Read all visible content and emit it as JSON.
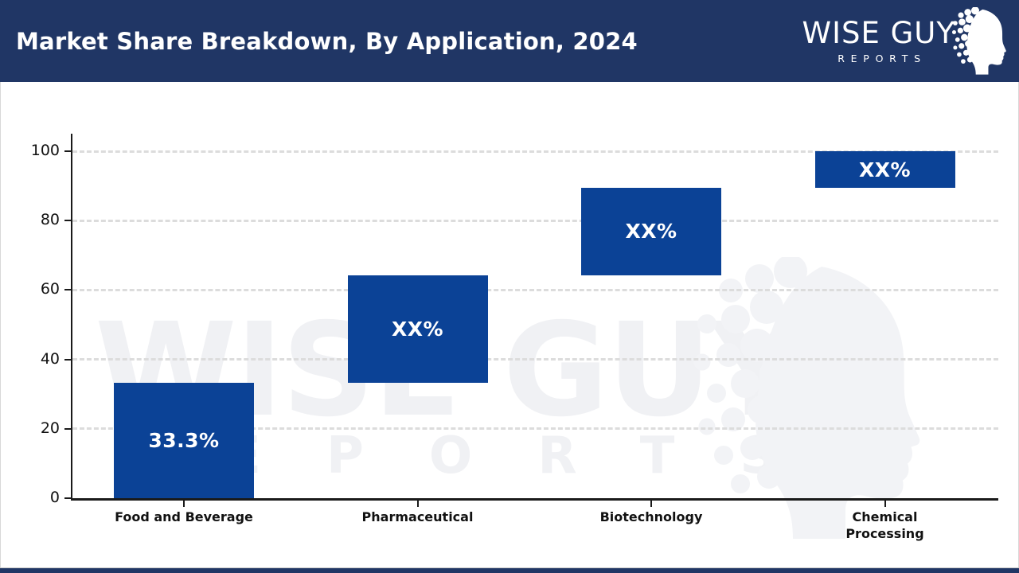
{
  "header": {
    "title": "Market Share Breakdown, By Application, 2024"
  },
  "logo": {
    "line1": "WISE GUY",
    "line2": "REPORTS"
  },
  "watermark": {
    "line1": "WISE GUY",
    "line2": "REPORTS"
  },
  "chart_data": {
    "type": "bar",
    "subtype": "floating-waterfall",
    "title": "Market Share Breakdown, By Application, 2024",
    "categories": [
      "Food and Beverage",
      "Pharmaceutical",
      "Biotechnology",
      "Chemical Processing"
    ],
    "category_lines": [
      [
        "Food and Beverage"
      ],
      [
        "Pharmaceutical"
      ],
      [
        "Biotechnology"
      ],
      [
        "Chemical",
        "Processing"
      ]
    ],
    "series": [
      {
        "name": "Market Share",
        "segments": [
          {
            "category": "Food and Beverage",
            "start": 0,
            "end": 33.3,
            "value": 33.3,
            "label": "33.3%"
          },
          {
            "category": "Pharmaceutical",
            "start": 33.3,
            "end": 64.3,
            "value": 31.0,
            "label": "XX%"
          },
          {
            "category": "Biotechnology",
            "start": 64.3,
            "end": 89.4,
            "value": 25.1,
            "label": "XX%"
          },
          {
            "category": "Chemical Processing",
            "start": 89.4,
            "end": 100,
            "value": 10.6,
            "label": "XX%"
          }
        ]
      }
    ],
    "xlabel": "",
    "ylabel": "",
    "ylim": [
      0,
      100
    ],
    "yticks": [
      0,
      20,
      40,
      60,
      80,
      100
    ],
    "grid": "horizontal-dashed",
    "legend": "none",
    "bar_color": "#0b4296",
    "label_color": "#ffffff"
  },
  "colors": {
    "header_bg": "#203665",
    "footer_bg": "#203665",
    "bar": "#0b4296",
    "watermark": "#f0f1f4",
    "gridline": "#dcdcdc",
    "axis": "#1a1a1a"
  }
}
